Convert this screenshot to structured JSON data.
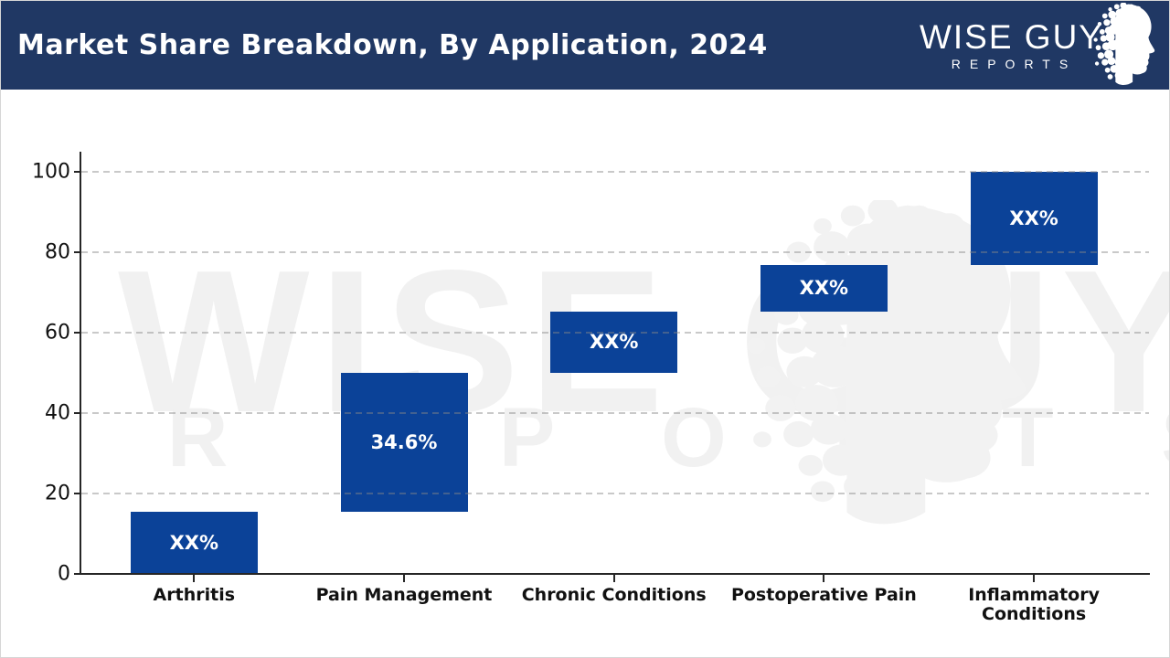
{
  "header": {
    "title": "Market Share Breakdown, By Application, 2024",
    "background_color": "#203864",
    "logo": {
      "line1": "WISE GUY",
      "line2": "REPORTS"
    }
  },
  "watermark": {
    "line1": "WISE GUY",
    "line2": "R E P O R T S"
  },
  "chart_data": {
    "type": "bar",
    "subtype": "floating-waterfall",
    "title": "Market Share Breakdown, By Application, 2024",
    "categories": [
      "Arthritis",
      "Pain Management",
      "Chronic Conditions",
      "Postoperative Pain",
      "Inflammatory Conditions"
    ],
    "segments": [
      {
        "category": "Arthritis",
        "start": 0,
        "end": 15.4,
        "label": "XX%"
      },
      {
        "category": "Pain Management",
        "start": 15.4,
        "end": 50.0,
        "label": "34.6%"
      },
      {
        "category": "Chronic Conditions",
        "start": 50.0,
        "end": 65.3,
        "label": "XX%"
      },
      {
        "category": "Postoperative Pain",
        "start": 65.3,
        "end": 76.9,
        "label": "XX%"
      },
      {
        "category": "Inflammatory Conditions",
        "start": 76.9,
        "end": 100.0,
        "label": "XX%"
      }
    ],
    "xlabel": "",
    "ylabel": "",
    "ylim": [
      0,
      100
    ],
    "yticks": [
      0,
      20,
      40,
      60,
      80,
      100
    ],
    "grid": "horizontal-dashed-over-bars",
    "legend": "none",
    "bar_color": "#0b4298",
    "bar_label_color": "#ffffff",
    "axis_color": "#262626"
  }
}
